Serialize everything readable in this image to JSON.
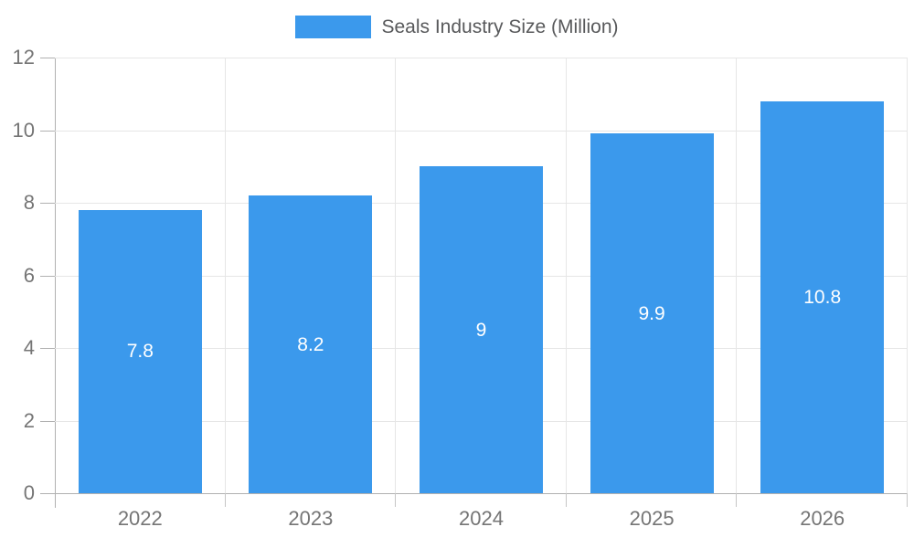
{
  "chart_data": {
    "type": "bar",
    "title": "Seals Industry Size (Million)",
    "categories": [
      "2022",
      "2023",
      "2024",
      "2025",
      "2026"
    ],
    "series": [
      {
        "name": "Seals Industry Size (Million)",
        "values": [
          7.8,
          8.2,
          9,
          9.9,
          10.8
        ]
      }
    ],
    "value_labels": [
      "7.8",
      "8.2",
      "9",
      "9.9",
      "10.8"
    ],
    "xlabel": "",
    "ylabel": "",
    "ylim": [
      0,
      12
    ],
    "yticks": [
      0,
      2,
      4,
      6,
      8,
      10,
      12
    ],
    "grid": true,
    "legend_position": "top",
    "colors": {
      "bar": "#3b99ec",
      "value_label": "#ffffff",
      "grid": "#e6e6e6",
      "axis": "#b1b1b1",
      "tick_text": "#757575",
      "legend_text": "#58595b"
    }
  }
}
